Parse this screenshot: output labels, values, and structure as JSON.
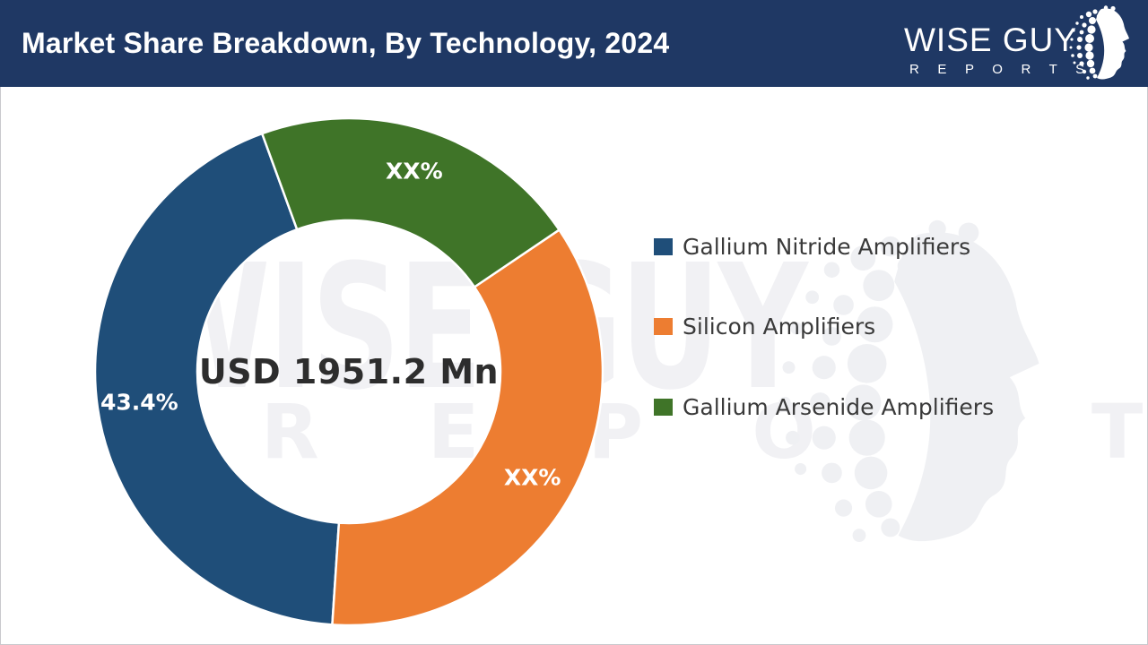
{
  "header": {
    "title": "Market Share Breakdown, By Technology, 2024",
    "bg_color": "#1f3864",
    "logo": {
      "line1": "WISE GUY",
      "line2": "R E P O R T S"
    }
  },
  "watermark": {
    "line1": "WISE GUY",
    "line2": "R E P O R T S"
  },
  "chart_data": {
    "type": "pie",
    "donut": true,
    "title": "Market Share Breakdown, By Technology, 2024",
    "center_label": "USD 1951.2 Mn",
    "start_angle_deg": 110,
    "direction": "counterclockwise",
    "legend_position": "right",
    "segments": [
      {
        "name": "Gallium Nitride Amplifiers",
        "display_label": "43.4%",
        "value_pct": 43.4,
        "color": "#1f4e79"
      },
      {
        "name": "Silicon Amplifiers",
        "display_label": "XX%",
        "value_pct": 35.5,
        "color": "#ed7d31"
      },
      {
        "name": "Gallium Arsenide Amplifiers",
        "display_label": "XX%",
        "value_pct": 21.1,
        "color": "#3f7428"
      }
    ]
  },
  "legend": {
    "items": [
      {
        "label": "Gallium Nitride Amplifiers"
      },
      {
        "label": "Silicon Amplifiers"
      },
      {
        "label": "Gallium Arsenide Amplifiers"
      }
    ]
  }
}
